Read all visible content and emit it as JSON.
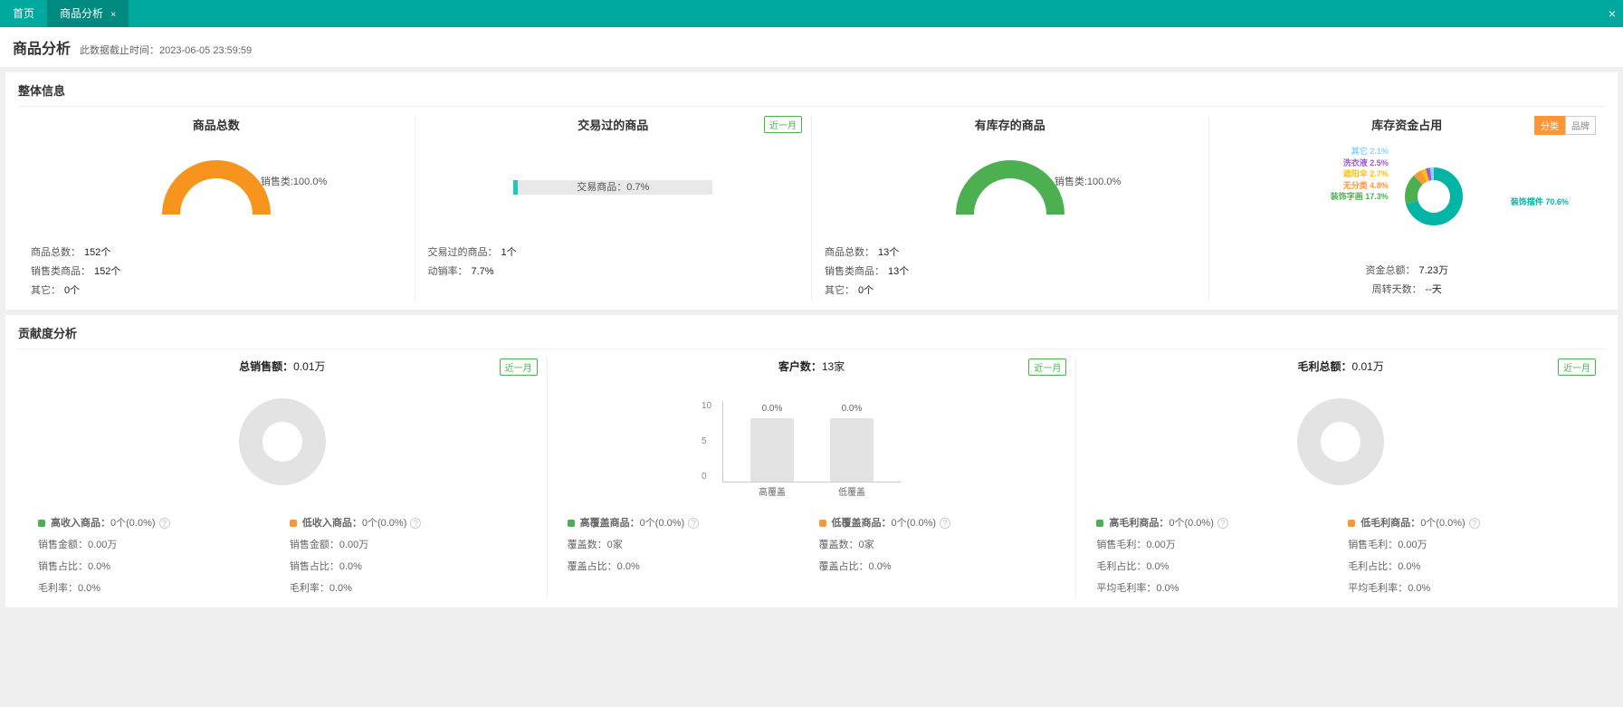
{
  "tabs": [
    {
      "label": "首页",
      "closable": false
    },
    {
      "label": "商品分析",
      "closable": true,
      "active": true
    }
  ],
  "page": {
    "title": "商品分析",
    "subtitle_prefix": "此数据截止时间：",
    "data_cutoff": "2023-06-05 23:59:59"
  },
  "overall": {
    "title": "整体信息",
    "card1": {
      "title": "商品总数",
      "chart": {
        "type": "semicircle",
        "value_pct": 100,
        "color": "#f7941d",
        "bg": "#f0f0f0",
        "stroke": 20
      },
      "legend": "销售类:100.0%",
      "stats": [
        {
          "label": "商品总数：",
          "value": "152个"
        },
        {
          "label": "销售类商品：",
          "value": "152个"
        },
        {
          "label": "其它：",
          "value": "0个"
        }
      ]
    },
    "card2": {
      "title": "交易过的商品",
      "badge": "近一月",
      "chart": {
        "type": "progress",
        "label": "交易商品：0.7%",
        "pct": 0.7,
        "fill": "#1ec9b7",
        "bg": "#e8e8e8"
      },
      "stats": [
        {
          "label": "交易过的商品：",
          "value": "1个"
        },
        {
          "label": "动销率：",
          "value": "7.7%"
        }
      ]
    },
    "card3": {
      "title": "有库存的商品",
      "chart": {
        "type": "semicircle",
        "value_pct": 100,
        "color": "#4caf50",
        "bg": "#f0f0f0",
        "stroke": 20
      },
      "legend": "销售类:100.0%",
      "stats": [
        {
          "label": "商品总数：",
          "value": "13个"
        },
        {
          "label": "销售类商品：",
          "value": "13个"
        },
        {
          "label": "其它：",
          "value": "0个"
        }
      ]
    },
    "card4": {
      "title": "库存资金占用",
      "toggle": {
        "on": "分类",
        "off": "品牌"
      },
      "chart": {
        "type": "donut",
        "slices": [
          {
            "label": "装饰摆件",
            "pct": 70.6,
            "color": "#00b5a5"
          },
          {
            "label": "装饰字画",
            "pct": 17.3,
            "color": "#4caf50"
          },
          {
            "label": "无分类",
            "pct": 4.8,
            "color": "#ff9636"
          },
          {
            "label": "遮阳伞",
            "pct": 2.7,
            "color": "#ffc107"
          },
          {
            "label": "洗衣液",
            "pct": 2.5,
            "color": "#9c5bd6"
          },
          {
            "label": "其它",
            "pct": 2.1,
            "color": "#8ad4ff"
          }
        ]
      },
      "stats": [
        {
          "label": "资金总额：",
          "value": "7.23万"
        },
        {
          "label": "周转天数：",
          "value": "--天"
        }
      ]
    }
  },
  "contrib": {
    "title": "贡献度分析",
    "card1": {
      "head_label": "总销售额：",
      "head_value": "0.01万",
      "badge": "近一月",
      "chart": {
        "type": "grey_donut"
      },
      "left": {
        "dot": "#4caf50",
        "name": "高收入商品：",
        "nv": "0个(0.0%)",
        "rows": [
          [
            "销售金额：",
            "0.00万"
          ],
          [
            "销售占比：",
            "0.0%"
          ],
          [
            "毛利率：",
            "0.0%"
          ]
        ]
      },
      "right": {
        "dot": "#ff9636",
        "name": "低收入商品：",
        "nv": "0个(0.0%)",
        "rows": [
          [
            "销售金额：",
            "0.00万"
          ],
          [
            "销售占比：",
            "0.0%"
          ],
          [
            "毛利率：",
            "0.0%"
          ]
        ]
      }
    },
    "card2": {
      "head_label": "客户数：",
      "head_value": "13家",
      "badge": "近一月",
      "chart": {
        "type": "bar",
        "yticks": [
          "10",
          "5",
          "0"
        ],
        "bars": [
          {
            "label": "高覆盖",
            "top": "0.0%",
            "h": 70
          },
          {
            "label": "低覆盖",
            "top": "0.0%",
            "h": 70
          }
        ]
      },
      "left": {
        "dot": "#4caf50",
        "name": "高覆盖商品：",
        "nv": "0个(0.0%)",
        "rows": [
          [
            "覆盖数：",
            "0家"
          ],
          [
            "覆盖占比：",
            "0.0%"
          ]
        ]
      },
      "right": {
        "dot": "#ff9636",
        "name": "低覆盖商品：",
        "nv": "0个(0.0%)",
        "rows": [
          [
            "覆盖数：",
            "0家"
          ],
          [
            "覆盖占比：",
            "0.0%"
          ]
        ]
      }
    },
    "card3": {
      "head_label": "毛利总额：",
      "head_value": "0.01万",
      "badge": "近一月",
      "chart": {
        "type": "grey_donut"
      },
      "left": {
        "dot": "#4caf50",
        "name": "高毛利商品：",
        "nv": "0个(0.0%)",
        "rows": [
          [
            "销售毛利：",
            "0.00万"
          ],
          [
            "毛利占比：",
            "0.0%"
          ],
          [
            "平均毛利率：",
            "0.0%"
          ]
        ]
      },
      "right": {
        "dot": "#ff9636",
        "name": "低毛利商品：",
        "nv": "0个(0.0%)",
        "rows": [
          [
            "销售毛利：",
            "0.00万"
          ],
          [
            "毛利占比：",
            "0.0%"
          ],
          [
            "平均毛利率：",
            "0.0%"
          ]
        ]
      }
    }
  }
}
